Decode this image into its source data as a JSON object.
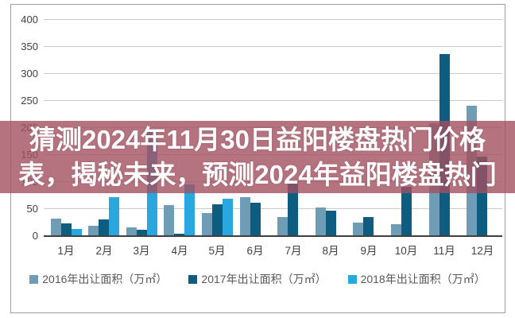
{
  "overlay": {
    "line1": "猜测2024年11月30日益阳楼盘热门价格",
    "line2": "表，揭秘未来，预测2024年益阳楼盘热门"
  },
  "chart_data": {
    "type": "bar",
    "title": "",
    "xlabel": "",
    "ylabel": "",
    "categories": [
      "1月",
      "2月",
      "3月",
      "4月",
      "5月",
      "6月",
      "7月",
      "8月",
      "9月",
      "10月",
      "11月",
      "12月"
    ],
    "series": [
      {
        "name": "2016年出让面积（万㎡）",
        "color": "#6f9db6",
        "values": [
          31,
          18,
          14,
          56,
          41,
          71,
          34,
          51,
          24,
          21,
          207,
          240
        ]
      },
      {
        "name": "2017年出让面积（万㎡）",
        "color": "#0e5c80",
        "values": [
          22,
          29,
          11,
          3,
          58,
          60,
          97,
          46,
          34,
          90,
          335,
          146
        ]
      },
      {
        "name": "2018年出让面积（万㎡）",
        "color": "#29a7df",
        "values": [
          12,
          71,
          194,
          94,
          68,
          null,
          null,
          null,
          null,
          null,
          null,
          null
        ]
      }
    ],
    "ylim": [
      0,
      400
    ],
    "ytick_step": 50,
    "yticks": [
      0,
      50,
      100,
      150,
      200,
      250,
      300,
      350,
      400
    ],
    "grid": true,
    "legend_position": "bottom"
  },
  "colors": {
    "overlay_band": "rgba(161,80,95,0.80)",
    "overlay_text": "#ffffff",
    "gridline": "#c9c9c9",
    "axis": "#3f3f3f",
    "tick_label": "#404040",
    "legend_label": "#595959",
    "frame_border": "#9d9d9d",
    "background": "#ffffff"
  }
}
